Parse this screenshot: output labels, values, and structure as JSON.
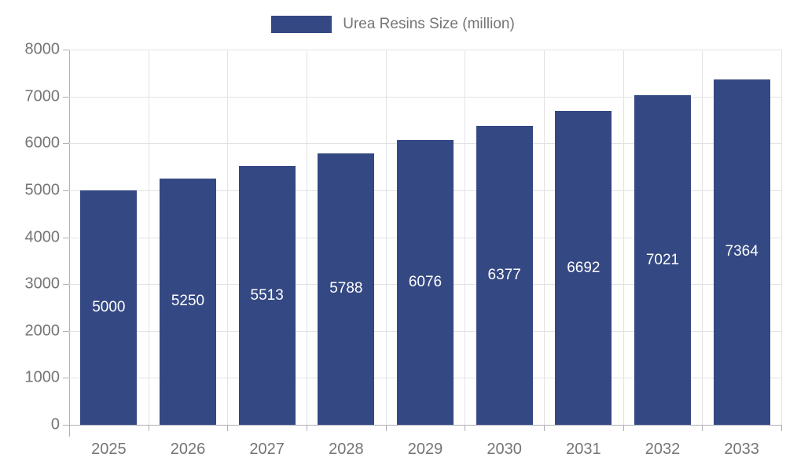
{
  "legend": {
    "label": "Urea Resins Size (million)"
  },
  "chart_data": {
    "type": "bar",
    "title": "",
    "xlabel": "",
    "ylabel": "",
    "categories": [
      "2025",
      "2026",
      "2027",
      "2028",
      "2029",
      "2030",
      "2031",
      "2032",
      "2033"
    ],
    "series": [
      {
        "name": "Urea Resins Size (million)",
        "values": [
          5000,
          5250,
          5513,
          5788,
          6076,
          6377,
          6692,
          7021,
          7364
        ]
      }
    ],
    "ylim": [
      0,
      8000
    ],
    "ytick_step": 1000,
    "ytick_labels": [
      "0",
      "1000",
      "2000",
      "3000",
      "4000",
      "5000",
      "6000",
      "7000",
      "8000"
    ],
    "grid": true,
    "legend_position": "top-center",
    "bar_labels_shown": true,
    "colors": {
      "bar": "#344883",
      "bar_label": "#ffffff",
      "axis_text": "#757575",
      "legend_text": "#757575",
      "gridline": "#e3e3e3",
      "axis_line": "#b0b0b8",
      "background": "#ffffff"
    }
  }
}
